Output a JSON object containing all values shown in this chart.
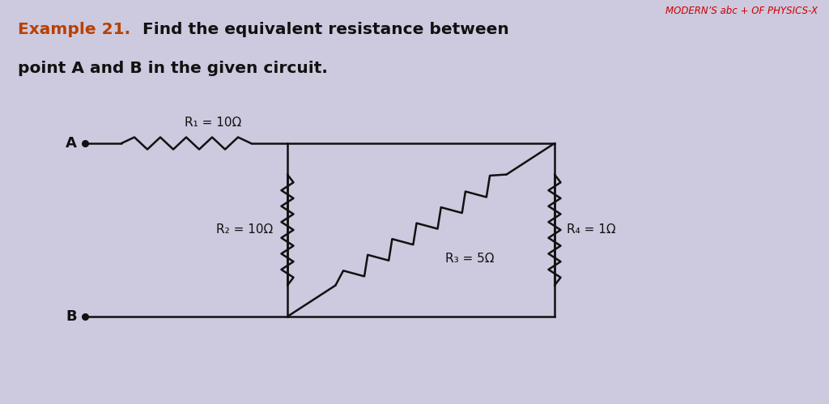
{
  "bg_color": "#cdc9de",
  "header_text": "MODERN’S abc + OF PHYSICS-X",
  "header_color": "#cc0000",
  "title_example": "Example 21.",
  "title_example_color": "#b84000",
  "title_rest1": "  Find the equivalent resistance between",
  "title_line2": "point A and B in the given circuit.",
  "title_color": "#111111",
  "R1_label": "R₁ = 10Ω",
  "R2_label": "R₂ = 10Ω",
  "R3_label": "R₃ = 5Ω",
  "R4_label": "R₄ = 1Ω",
  "pointA_label": "A",
  "pointB_label": "B",
  "line_color": "#111111"
}
